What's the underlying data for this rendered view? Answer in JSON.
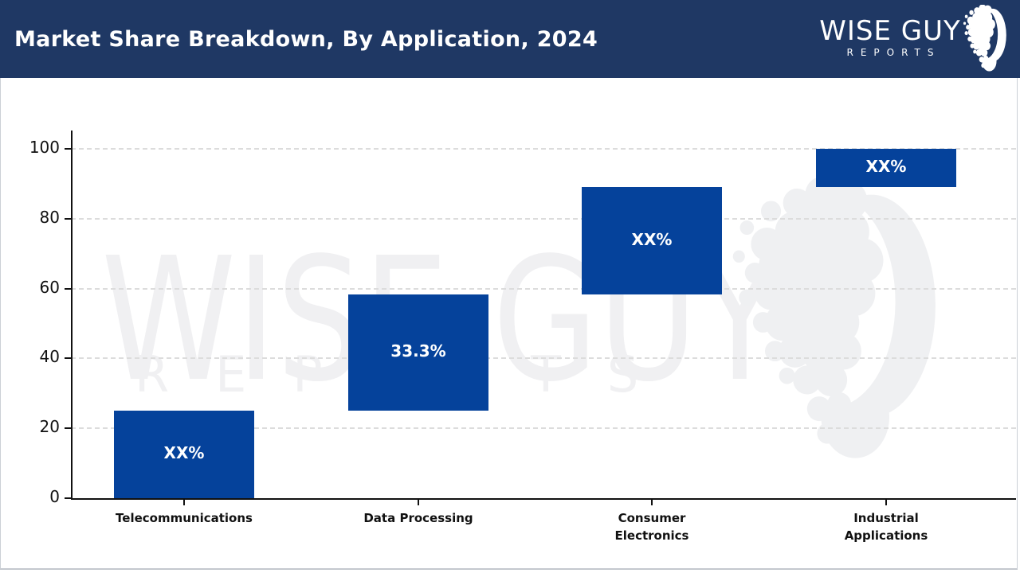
{
  "header": {
    "title": "Market Share Breakdown, By Application, 2024",
    "logo": {
      "line1": "WISE GUY",
      "line2": "REPORTS"
    }
  },
  "watermark": {
    "line1": "WISE GUY",
    "line2": "REPORTS"
  },
  "colors": {
    "header_bg": "#1f3864",
    "bar_blue": "#05429b",
    "axis_black": "#111111",
    "gridline_gray": "#dcdcdc",
    "watermark_gray": "#f0f0f2",
    "frame_gray": "#ccd0d6",
    "bar_label_white": "#ffffff"
  },
  "chart_data": {
    "type": "bar",
    "subtype": "waterfall",
    "title": "Market Share Breakdown, By Application, 2024",
    "categories": [
      "Telecommunications",
      "Data Processing",
      "Consumer\nElectronics",
      "Industrial\nApplications"
    ],
    "segments": [
      {
        "category": "Telecommunications",
        "start": 0,
        "end": 25,
        "label": "XX%"
      },
      {
        "category": "Data Processing",
        "start": 25,
        "end": 58.3,
        "label": "33.3%"
      },
      {
        "category": "Consumer Electronics",
        "start": 58.3,
        "end": 89,
        "label": "XX%"
      },
      {
        "category": "Industrial Applications",
        "start": 89,
        "end": 100,
        "label": "XX%"
      }
    ],
    "xlabel": "",
    "ylabel": "",
    "ylim": [
      0,
      100
    ],
    "yticks": [
      0,
      20,
      40,
      60,
      80,
      100
    ],
    "grid": "horizontal-dashed",
    "legend": null,
    "bar_color": "#05429b",
    "bar_label_color": "#ffffff"
  }
}
